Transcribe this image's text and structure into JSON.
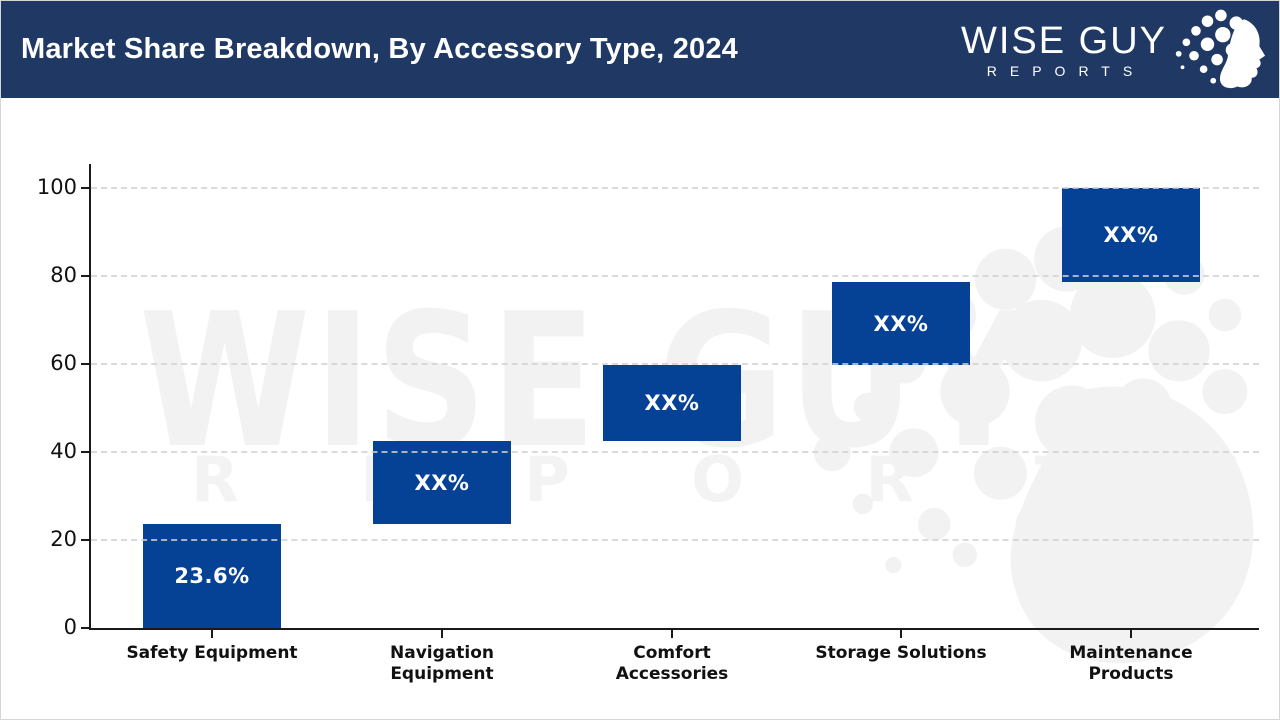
{
  "header": {
    "title": "Market Share Breakdown, By Accessory Type, 2024",
    "brand": {
      "line1": "WISE GUY",
      "line2": "REPORTS"
    }
  },
  "watermark": {
    "line1": "WISE GUY",
    "line2": "R E P O R T S"
  },
  "colors": {
    "header_bg": "#1f3864",
    "bar": "#054296",
    "bar_label": "#ffffff",
    "grid": "#d1d1d1",
    "axis": "#1a1a1a",
    "watermark": "#f2f2f2"
  },
  "chart_data": {
    "type": "bar",
    "subtype": "waterfall",
    "title": "Market Share Breakdown, By Accessory Type, 2024",
    "xlabel": "",
    "ylabel": "",
    "categories": [
      "Safety Equipment",
      "Navigation Equipment",
      "Comfort Accessories",
      "Storage Solutions",
      "Maintenance Products"
    ],
    "categories_wrapped": [
      [
        "Safety Equipment"
      ],
      [
        "Navigation",
        "Equipment"
      ],
      [
        "Comfort",
        "Accessories"
      ],
      [
        "Storage Solutions"
      ],
      [
        "Maintenance",
        "Products"
      ]
    ],
    "segments": [
      {
        "category": "Safety Equipment",
        "start": 0,
        "end": 23.6,
        "label": "23.6%"
      },
      {
        "category": "Navigation Equipment",
        "start": 23.6,
        "end": 42.4,
        "label": "XX%"
      },
      {
        "category": "Comfort Accessories",
        "start": 42.4,
        "end": 59.7,
        "label": "XX%"
      },
      {
        "category": "Storage Solutions",
        "start": 59.7,
        "end": 78.5,
        "label": "XX%"
      },
      {
        "category": "Maintenance Products",
        "start": 78.5,
        "end": 100,
        "label": "XX%"
      }
    ],
    "yticks": [
      0,
      20,
      40,
      60,
      80,
      100
    ],
    "ylim": [
      0,
      105
    ],
    "grid": "horizontal-dashed",
    "legend": "none"
  }
}
